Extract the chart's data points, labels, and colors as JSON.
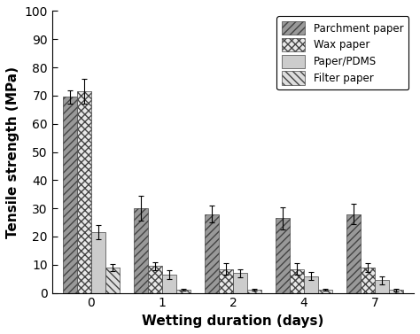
{
  "categories": [
    0,
    1,
    2,
    4,
    7
  ],
  "cat_labels": [
    "0",
    "1",
    "2",
    "4",
    "7"
  ],
  "series": {
    "Parchment paper": {
      "values": [
        69.5,
        30.0,
        28.0,
        26.5,
        28.0
      ],
      "errors": [
        2.5,
        4.5,
        3.0,
        4.0,
        3.5
      ],
      "hatch": "////",
      "facecolor": "#999999",
      "edgecolor": "#444444"
    },
    "Wax paper": {
      "values": [
        71.5,
        9.5,
        8.5,
        8.5,
        9.0
      ],
      "errors": [
        4.5,
        1.5,
        2.0,
        2.0,
        1.5
      ],
      "hatch": "xxxx",
      "facecolor": "#e8e8e8",
      "edgecolor": "#444444"
    },
    "Paper/PDMS": {
      "values": [
        21.5,
        6.5,
        7.0,
        6.0,
        4.5
      ],
      "errors": [
        2.5,
        1.5,
        1.5,
        1.5,
        1.5
      ],
      "hatch": "####",
      "facecolor": "#cccccc",
      "edgecolor": "#444444"
    },
    "Filter paper": {
      "values": [
        9.0,
        1.2,
        1.2,
        1.2,
        1.0
      ],
      "errors": [
        1.2,
        0.4,
        0.4,
        0.4,
        0.4
      ],
      "hatch": "\\\\\\\\",
      "facecolor": "#dddddd",
      "edgecolor": "#444444"
    }
  },
  "xlabel": "Wetting duration (days)",
  "ylabel": "Tensile strength (MPa)",
  "ylim": [
    0,
    100
  ],
  "yticks": [
    0,
    10,
    20,
    30,
    40,
    50,
    60,
    70,
    80,
    90,
    100
  ],
  "bar_width": 0.2,
  "figsize": [
    4.74,
    3.77
  ],
  "dpi": 100
}
